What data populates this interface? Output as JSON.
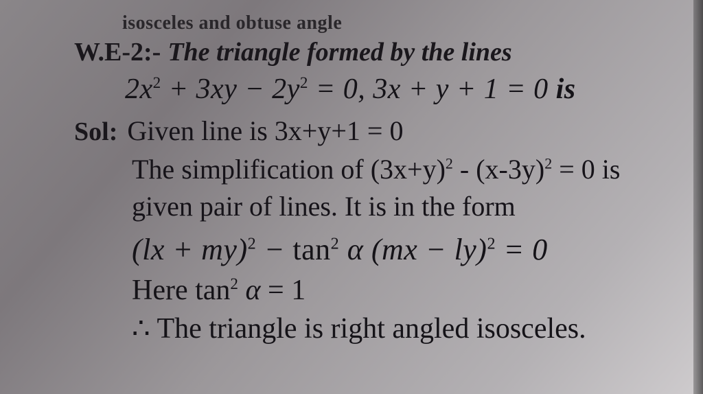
{
  "top_clip": "isosceles and obtuse angle",
  "problem": {
    "label": "W.E-2:-",
    "text": "The triangle formed by the lines"
  },
  "eq1_html": "2<i>x</i><sup>2</sup> + 3<i>xy</i> − 2<i>y</i><sup>2</sup> = 0, 3<i>x</i> + <i>y</i> + 1 = 0 <span class='is'>is</span>",
  "sol_label": "Sol:",
  "sol_line1": "Given line is 3x+y+1 = 0",
  "sol_line2_html": "The simplification of (3x+y)<sup>2</sup> - (x-3y)<sup>2</sup> = 0 is",
  "sol_line3": "given pair of lines. It is in the form",
  "formula_html": "(<i>lx</i> + <i>my</i>)<sup>2</sup> − <span class='upright'>tan</span><sup>2</sup> α (<i>mx</i> − <i>ly</i>)<sup>2</sup> = 0",
  "here_html": "Here <span class='upright'>tan</span><sup>2</sup> <i>α</i> = 1",
  "therefore": "∴ The triangle is right angled isosceles.",
  "colors": {
    "text": "#151318",
    "bg_start": "#8a8689",
    "bg_end": "#cfccce"
  },
  "font": {
    "family": "Times New Roman",
    "title_size_pt": 28,
    "body_size_pt": 30,
    "formula_size_pt": 33
  }
}
